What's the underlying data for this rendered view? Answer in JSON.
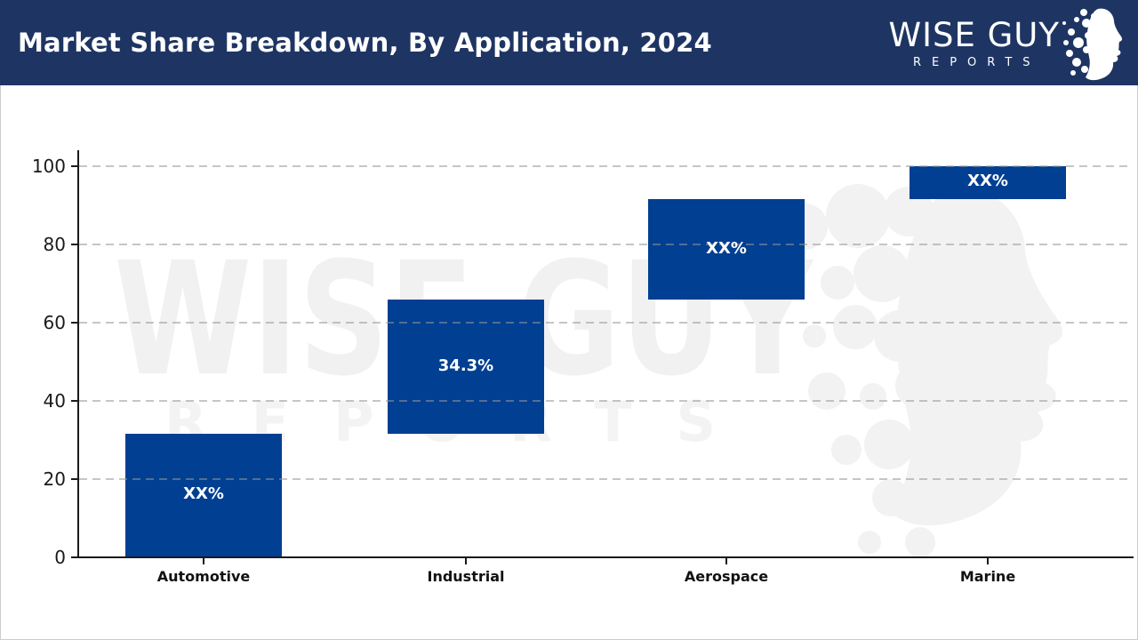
{
  "header": {
    "title": "Market Share Breakdown, By Application, 2024",
    "logo": {
      "line1": "WISE GUY",
      "line2": "REPORTS"
    }
  },
  "watermark": {
    "line1": "WISE GUY",
    "line2": "REPORTS"
  },
  "chart_data": {
    "type": "bar",
    "subtype": "waterfall",
    "title": "Market Share Breakdown, By Application, 2024",
    "categories": [
      "Automotive",
      "Industrial",
      "Aerospace",
      "Marine"
    ],
    "series": [
      {
        "name": "Market Share",
        "segments": [
          {
            "from": 0,
            "to": 31.6
          },
          {
            "from": 31.6,
            "to": 65.9
          },
          {
            "from": 65.9,
            "to": 91.6
          },
          {
            "from": 91.6,
            "to": 100
          }
        ],
        "values": [
          31.6,
          34.3,
          25.7,
          8.4
        ]
      }
    ],
    "bar_labels": [
      "XX%",
      "34.3%",
      "XX%",
      "XX%"
    ],
    "xlabel": "",
    "ylabel": "",
    "ylim": [
      0,
      100
    ],
    "yticks": [
      0,
      20,
      40,
      60,
      80,
      100
    ],
    "grid": "horizontal-dashed",
    "legend": "none",
    "colors": {
      "bar": "#003f92",
      "header_bg": "#1e3563",
      "grid": "#999999",
      "axis": "#1a1a1a",
      "bar_label_text": "#ffffff",
      "watermark": "#f1f1f1",
      "title_text": "#ffffff"
    }
  }
}
